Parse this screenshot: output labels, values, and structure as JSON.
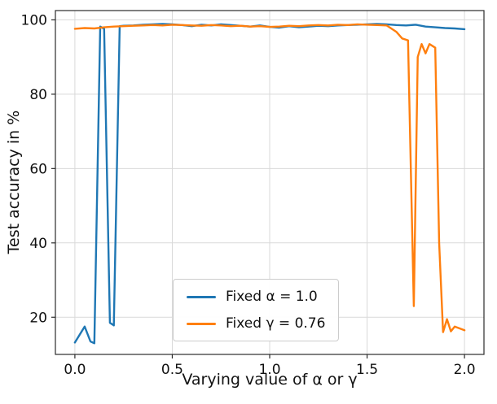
{
  "chart_data": {
    "type": "line",
    "title": "",
    "xlabel": "Varying value of α or γ",
    "ylabel": "Test accuracy in %",
    "xlim": [
      -0.1,
      2.1
    ],
    "ylim": [
      10,
      102.5
    ],
    "grid": true,
    "legend_position": "lower center",
    "axis_color": "#2b2b2b",
    "grid_color": "#d9d9d9",
    "xticks": {
      "values": [
        0.0,
        0.5,
        1.0,
        1.5,
        2.0
      ],
      "labels": [
        "0.0",
        "0.5",
        "1.0",
        "1.5",
        "2.0"
      ]
    },
    "yticks": {
      "values": [
        20,
        40,
        60,
        80,
        100
      ],
      "labels": [
        "20",
        "40",
        "60",
        "80",
        "100"
      ]
    },
    "series": [
      {
        "name": "Fixed α = 1.0",
        "color": "#1f77b4",
        "x": [
          0.0,
          0.05,
          0.08,
          0.1,
          0.13,
          0.15,
          0.18,
          0.2,
          0.23,
          0.25,
          0.3,
          0.35,
          0.4,
          0.45,
          0.5,
          0.55,
          0.6,
          0.65,
          0.7,
          0.75,
          0.8,
          0.85,
          0.9,
          0.95,
          1.0,
          1.05,
          1.1,
          1.15,
          1.2,
          1.25,
          1.3,
          1.35,
          1.4,
          1.45,
          1.5,
          1.55,
          1.6,
          1.65,
          1.7,
          1.75,
          1.8,
          1.85,
          1.9,
          1.95,
          2.0
        ],
        "y": [
          13.2,
          17.5,
          13.5,
          13.0,
          98.2,
          97.6,
          18.5,
          17.8,
          98.3,
          98.4,
          98.5,
          98.7,
          98.8,
          98.9,
          98.8,
          98.6,
          98.3,
          98.7,
          98.5,
          98.8,
          98.6,
          98.4,
          98.2,
          98.5,
          98.1,
          97.9,
          98.3,
          98.0,
          98.2,
          98.4,
          98.3,
          98.5,
          98.6,
          98.7,
          98.8,
          98.9,
          98.8,
          98.6,
          98.5,
          98.7,
          98.2,
          98.0,
          97.8,
          97.7,
          97.5
        ]
      },
      {
        "name": "Fixed γ = 0.76",
        "color": "#ff7f0e",
        "x": [
          0.0,
          0.05,
          0.1,
          0.15,
          0.2,
          0.25,
          0.3,
          0.35,
          0.4,
          0.45,
          0.5,
          0.55,
          0.6,
          0.65,
          0.7,
          0.75,
          0.8,
          0.85,
          0.9,
          0.95,
          1.0,
          1.05,
          1.1,
          1.15,
          1.2,
          1.25,
          1.3,
          1.35,
          1.4,
          1.45,
          1.5,
          1.55,
          1.6,
          1.65,
          1.68,
          1.71,
          1.74,
          1.76,
          1.78,
          1.8,
          1.82,
          1.85,
          1.87,
          1.89,
          1.91,
          1.93,
          1.95,
          2.0
        ],
        "y": [
          97.6,
          97.8,
          97.7,
          98.0,
          98.2,
          98.3,
          98.4,
          98.5,
          98.6,
          98.5,
          98.7,
          98.6,
          98.5,
          98.4,
          98.6,
          98.5,
          98.3,
          98.4,
          98.2,
          98.3,
          98.1,
          98.2,
          98.4,
          98.3,
          98.5,
          98.6,
          98.5,
          98.7,
          98.6,
          98.8,
          98.7,
          98.6,
          98.5,
          96.8,
          95.0,
          94.5,
          23.0,
          90.0,
          93.5,
          91.0,
          93.5,
          92.5,
          40.0,
          16.0,
          19.5,
          16.2,
          17.5,
          16.5
        ]
      }
    ]
  }
}
